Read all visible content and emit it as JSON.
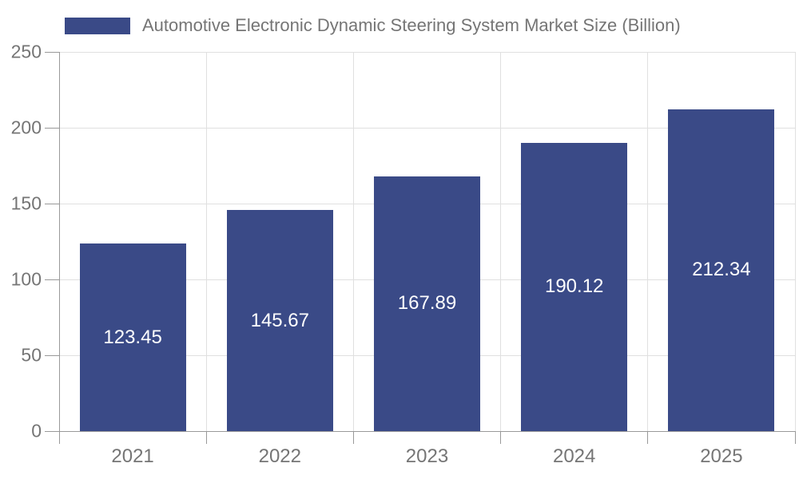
{
  "legend": {
    "position": "top-left",
    "swatch_color": "#3A4A87"
  },
  "chart_data": {
    "type": "bar",
    "title": "Automotive Electronic Dynamic Steering System Market Size (Billion)",
    "categories": [
      "2021",
      "2022",
      "2023",
      "2024",
      "2025"
    ],
    "values": [
      123.45,
      145.67,
      167.89,
      190.12,
      212.34
    ],
    "value_labels": [
      "123.45",
      "145.67",
      "167.89",
      "190.12",
      "212.34"
    ],
    "xlabel": "",
    "ylabel": "",
    "ylim": [
      0,
      250
    ],
    "yticks": [
      0,
      50,
      100,
      150,
      200,
      250
    ],
    "ytick_labels": [
      "0",
      "50",
      "100",
      "150",
      "200",
      "250"
    ],
    "grid": true,
    "legend_position": "top",
    "bar_color": "#3A4A87",
    "value_label_color": "#FFFFFF",
    "axis_text_color": "#757575",
    "gridline_color": "#E0E0E0",
    "axis_line_color": "#999999",
    "background_color": "#FFFFFF"
  }
}
